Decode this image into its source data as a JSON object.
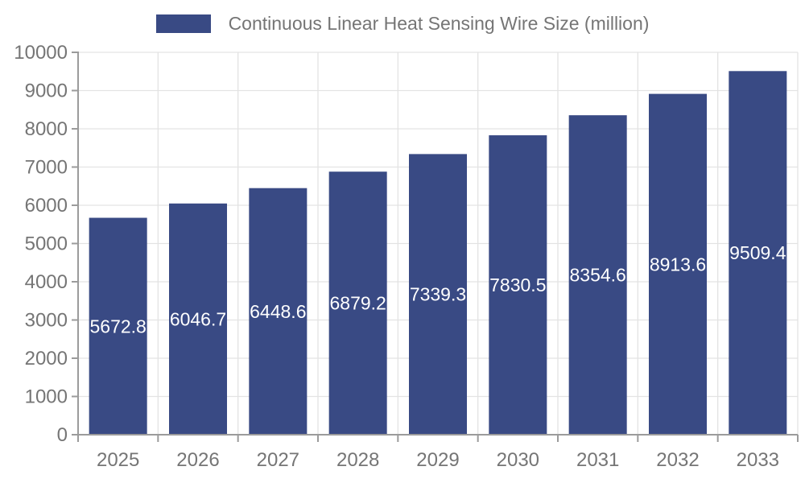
{
  "legend": {
    "label": "Continuous Linear Heat Sensing Wire Size (million)"
  },
  "chart_data": {
    "type": "bar",
    "title": "Continuous Linear Heat Sensing Wire Size (million)",
    "categories": [
      "2025",
      "2026",
      "2027",
      "2028",
      "2029",
      "2030",
      "2031",
      "2032",
      "2033"
    ],
    "values": [
      5672.8,
      6046.7,
      6448.6,
      6879.2,
      7339.3,
      7830.5,
      8354.6,
      8913.6,
      9509.4
    ],
    "value_labels": [
      "5672.8",
      "6046.7",
      "6448.6",
      "6879.2",
      "7339.3",
      "7830.5",
      "8354.6",
      "8913.6",
      "9509.4"
    ],
    "ytick_labels": [
      "0",
      "1000",
      "2000",
      "3000",
      "4000",
      "5000",
      "6000",
      "7000",
      "8000",
      "9000",
      "10000"
    ],
    "ylim": [
      0,
      10000
    ],
    "ytick_step": 1000,
    "grid": true,
    "legend_position": "top",
    "xlabel": "",
    "ylabel": "",
    "colors": {
      "bar": "#394A84",
      "bar_label": "#ffffff",
      "axis_text": "#757575",
      "axis_line": "#9B9B9B",
      "grid_line": "#E3E3E3"
    }
  }
}
